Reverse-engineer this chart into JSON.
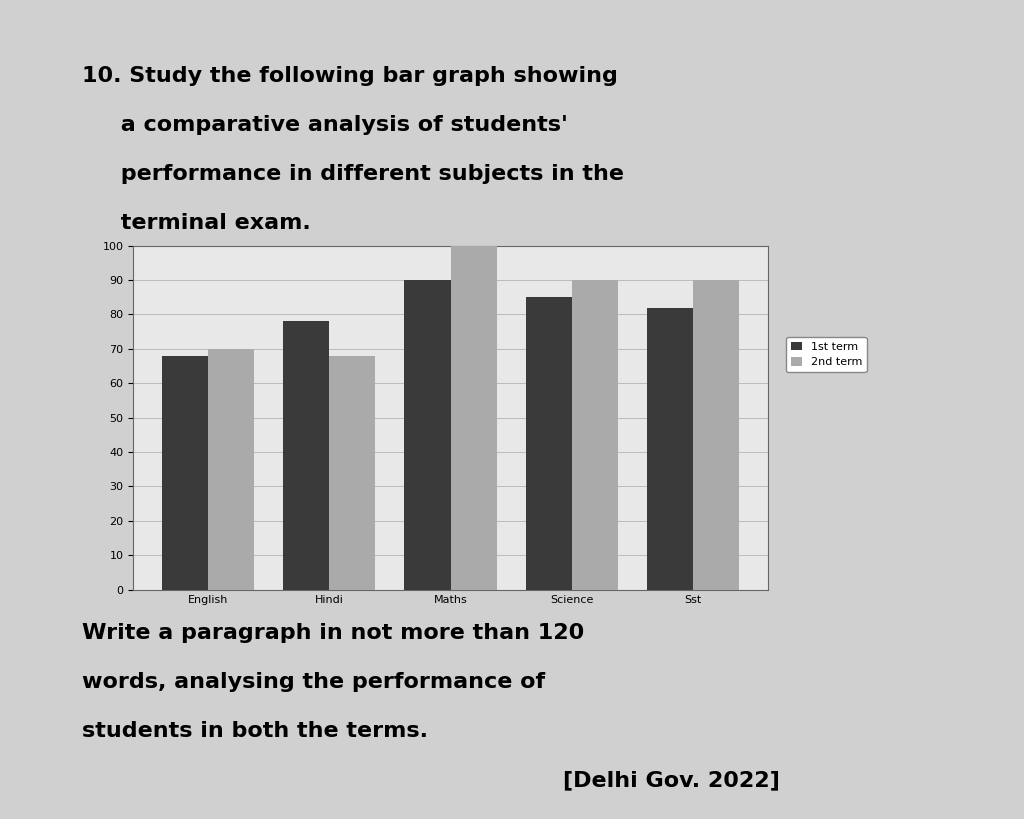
{
  "categories": [
    "English",
    "Hindi",
    "Maths",
    "Science",
    "Sst"
  ],
  "term1_values": [
    68,
    78,
    90,
    85,
    82
  ],
  "term2_values": [
    70,
    68,
    100,
    90,
    90
  ],
  "term1_color": "#3a3a3a",
  "term2_color": "#aaaaaa",
  "term1_label": "1st term",
  "term2_label": "2nd term",
  "ylim": [
    0,
    100
  ],
  "yticks": [
    0,
    10,
    20,
    30,
    40,
    50,
    60,
    70,
    80,
    90,
    100
  ],
  "bar_width": 0.38,
  "grid_color": "#bbbbbb",
  "chart_bg": "#e8e8e8",
  "page_bg": "#d0d0d0",
  "legend_fontsize": 8,
  "tick_fontsize": 8,
  "xlabel_fontsize": 8,
  "title_line1": "10. Study the following bar graph showing",
  "title_line2": "     a comparative analysis of students'",
  "title_line3": "     performance in different subjects in the",
  "title_line4": "     terminal exam.",
  "footer_line1": "Write a paragraph in not more than 120",
  "footer_line2": "words, analysing the performance of",
  "footer_line3": "students in both the terms.",
  "footer_line4": "[Delhi Gov. 2022]"
}
